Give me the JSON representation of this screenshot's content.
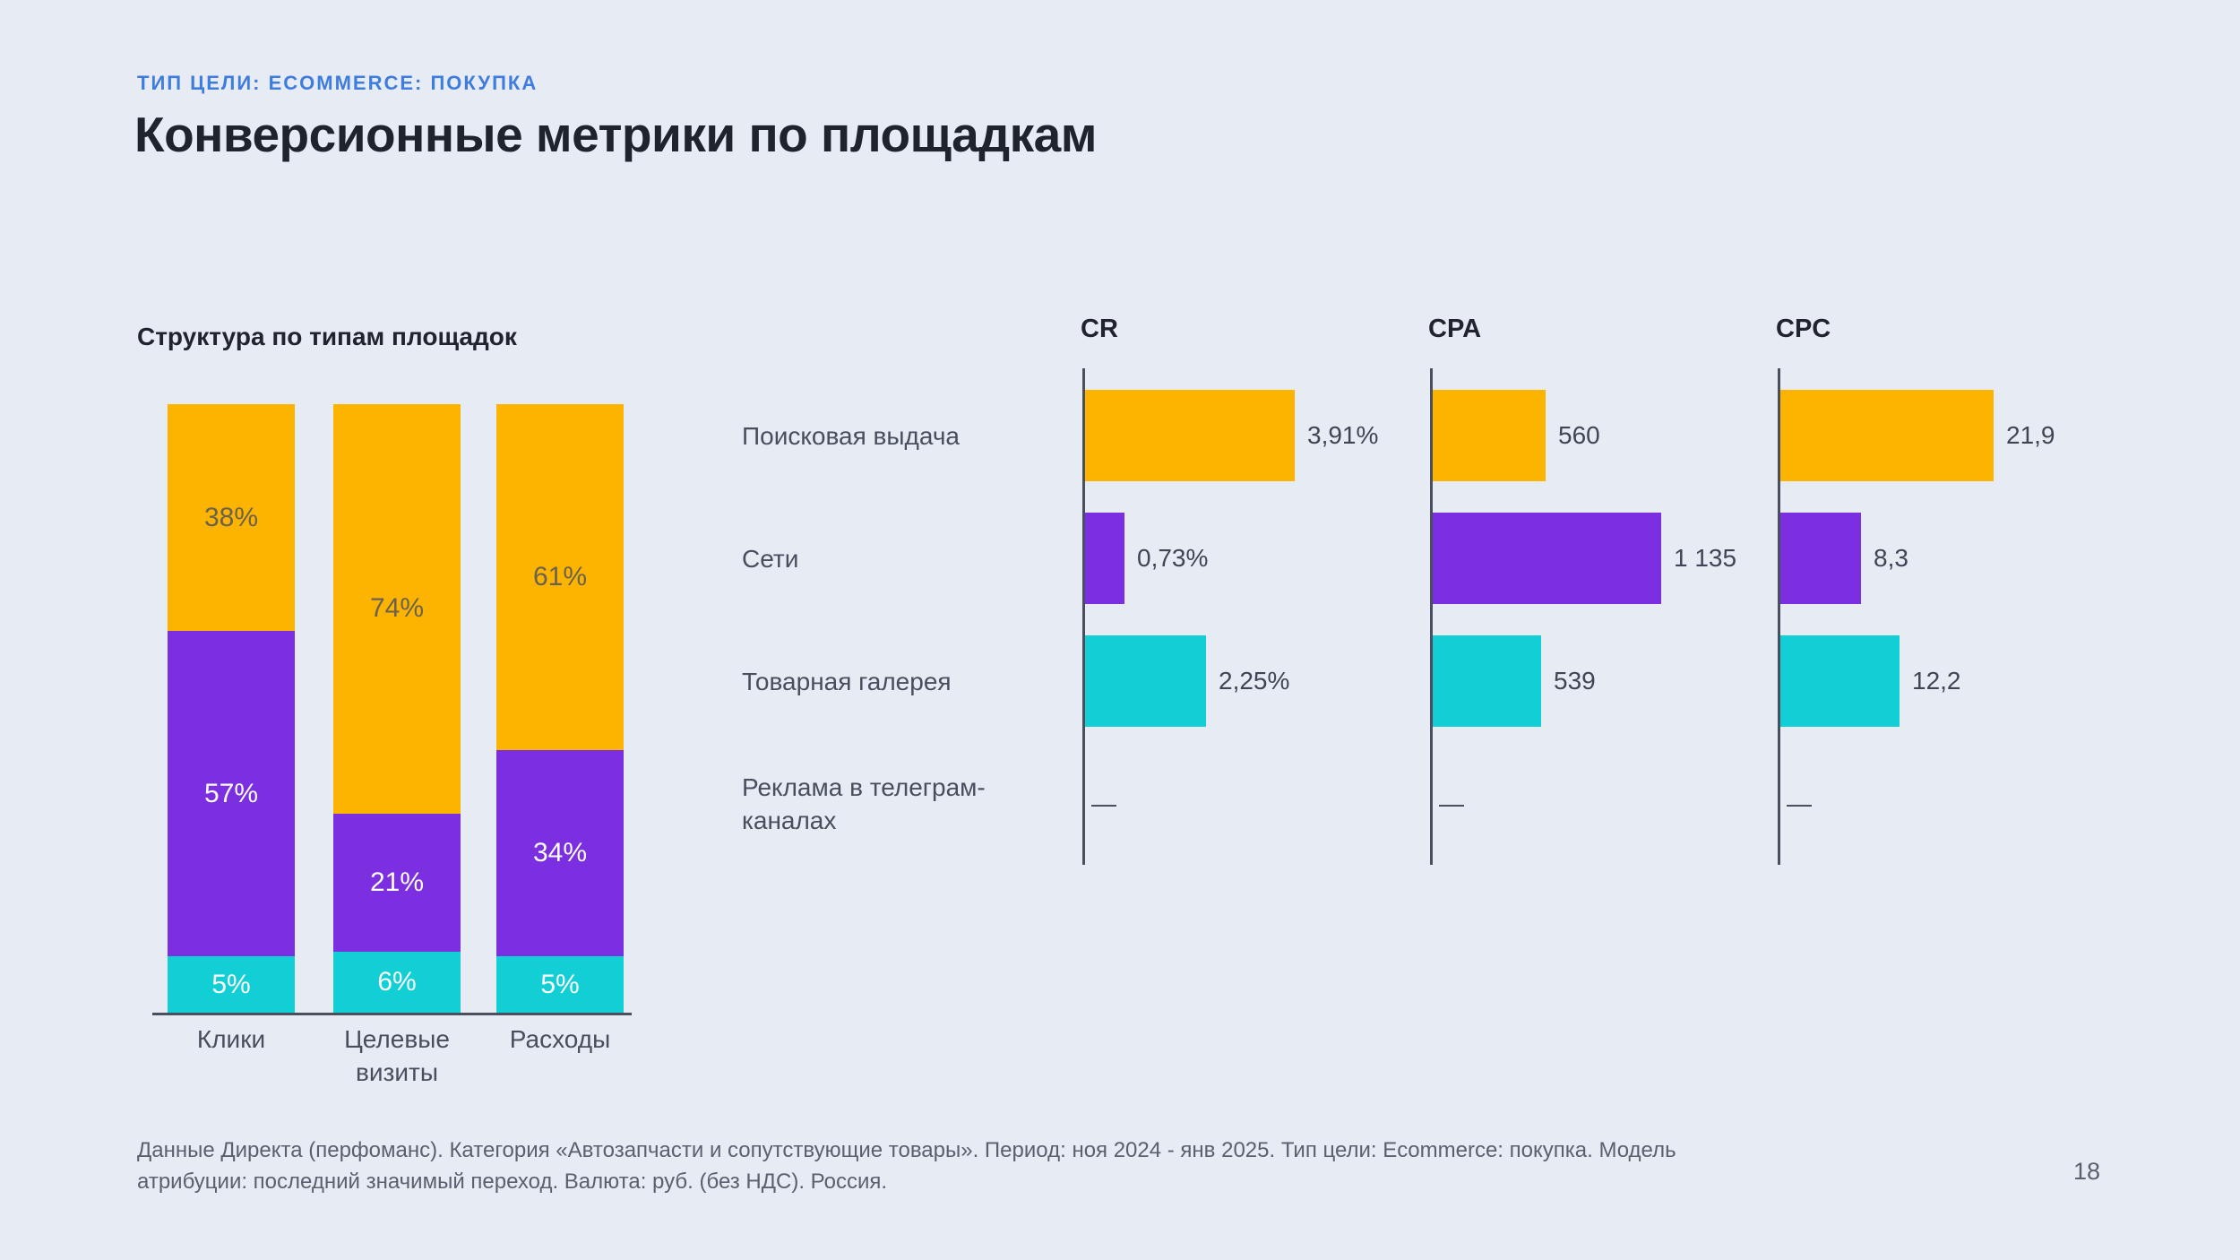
{
  "slide": {
    "eyebrow": "ТИП ЦЕЛИ: ECOMMERCE: ПОКУПКА",
    "title": "Конверсионные метрики по площадкам",
    "footnote_line1": "Данные Директа (перфоманс). Категория «Автозапчасти и сопутствующие товары». Период: ноя 2024 - янв 2025. Тип цели: Ecommerce: покупка. Модель",
    "footnote_line2": "атрибуции: последний значимый переход. Валюта: руб. (без НДС). Россия.",
    "page_number": "18"
  },
  "colors": {
    "background": "#E7EBF4",
    "yellow": "#FCB400",
    "purple": "#7B2FE0",
    "cyan": "#12CFD5",
    "axis": "#494F5D",
    "eyebrow_blue": "#3E7DDD",
    "title_text": "#1F232D",
    "label_text": "#474E5E",
    "value_text": "#3E4554",
    "footnote_text": "#59606E",
    "on_yellow_label": "#6B6151",
    "on_dark_label": "#FFFFFF"
  },
  "chart_data": [
    {
      "type": "bar",
      "subtype": "stacked-column-100pct",
      "title": "Структура по типам площадок",
      "categories": [
        "Клики",
        "Целевые визиты",
        "Расходы"
      ],
      "unit": "%",
      "series": [
        {
          "name": "Поисковая выдача",
          "color": "#FCB400",
          "values": [
            38,
            74,
            61
          ]
        },
        {
          "name": "Сети",
          "color": "#7B2FE0",
          "values": [
            57,
            21,
            34
          ]
        },
        {
          "name": "Товарная галерея",
          "color": "#12CFD5",
          "values": [
            5,
            6,
            5
          ]
        }
      ],
      "legend": "none",
      "grid": false
    },
    {
      "type": "bar",
      "subtype": "horizontal-small-multiples",
      "categories": [
        "Поисковая выдача",
        "Сети",
        "Товарная галерея",
        "Реклама в телеграм-каналах"
      ],
      "row_colors": [
        "#FCB400",
        "#7B2FE0",
        "#12CFD5",
        null
      ],
      "panels": [
        {
          "title": "CR",
          "values": [
            3.91,
            0.73,
            2.25,
            null
          ],
          "labels": [
            "3,91%",
            "0,73%",
            "2,25%",
            "—"
          ]
        },
        {
          "title": "CPA",
          "values": [
            560,
            1135,
            539,
            null
          ],
          "labels": [
            "560",
            "1 135",
            "539",
            "—"
          ]
        },
        {
          "title": "CPC",
          "values": [
            21.9,
            8.3,
            12.2,
            null
          ],
          "labels": [
            "21,9",
            "8,3",
            "12,2",
            "—"
          ]
        }
      ],
      "grid": false,
      "legend": "none"
    }
  ]
}
